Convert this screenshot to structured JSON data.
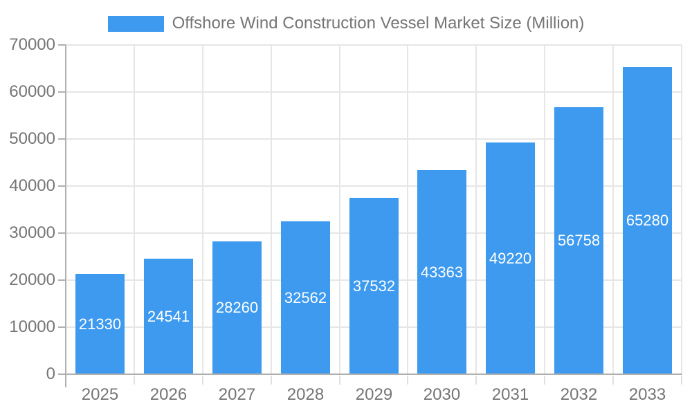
{
  "chart_data": {
    "type": "bar",
    "title": "Offshore Wind Construction Vessel Market Size (Million)",
    "categories": [
      "2025",
      "2026",
      "2027",
      "2028",
      "2029",
      "2030",
      "2031",
      "2032",
      "2033"
    ],
    "series": [
      {
        "name": "Offshore Wind Construction Vessel Market Size (Million)",
        "values": [
          21330,
          24541,
          28260,
          32562,
          37532,
          43363,
          49220,
          56758,
          65280
        ]
      }
    ],
    "data_labels": [
      "21330",
      "24541",
      "28260",
      "32562",
      "37532",
      "43363",
      "49220",
      "56758",
      "65280"
    ],
    "xlabel": "",
    "ylabel": "",
    "ylim": [
      0,
      70000
    ],
    "ytick_step": 10000,
    "ytick_labels": [
      "0",
      "10000",
      "20000",
      "30000",
      "40000",
      "50000",
      "60000",
      "70000"
    ],
    "grid": true,
    "legend_position": "top"
  },
  "legend": {
    "label": "Offshore Wind Construction Vessel Market Size (Million)"
  },
  "colors": {
    "bar": "#3d9aef",
    "axis_text": "#757575",
    "legend_text": "#757575",
    "value_label_text": "#ffffff",
    "gridline": "#e6e6e6",
    "axis_line": "#b0b0b0",
    "minor_tick": "#e0e0e0",
    "background": "#ffffff"
  }
}
